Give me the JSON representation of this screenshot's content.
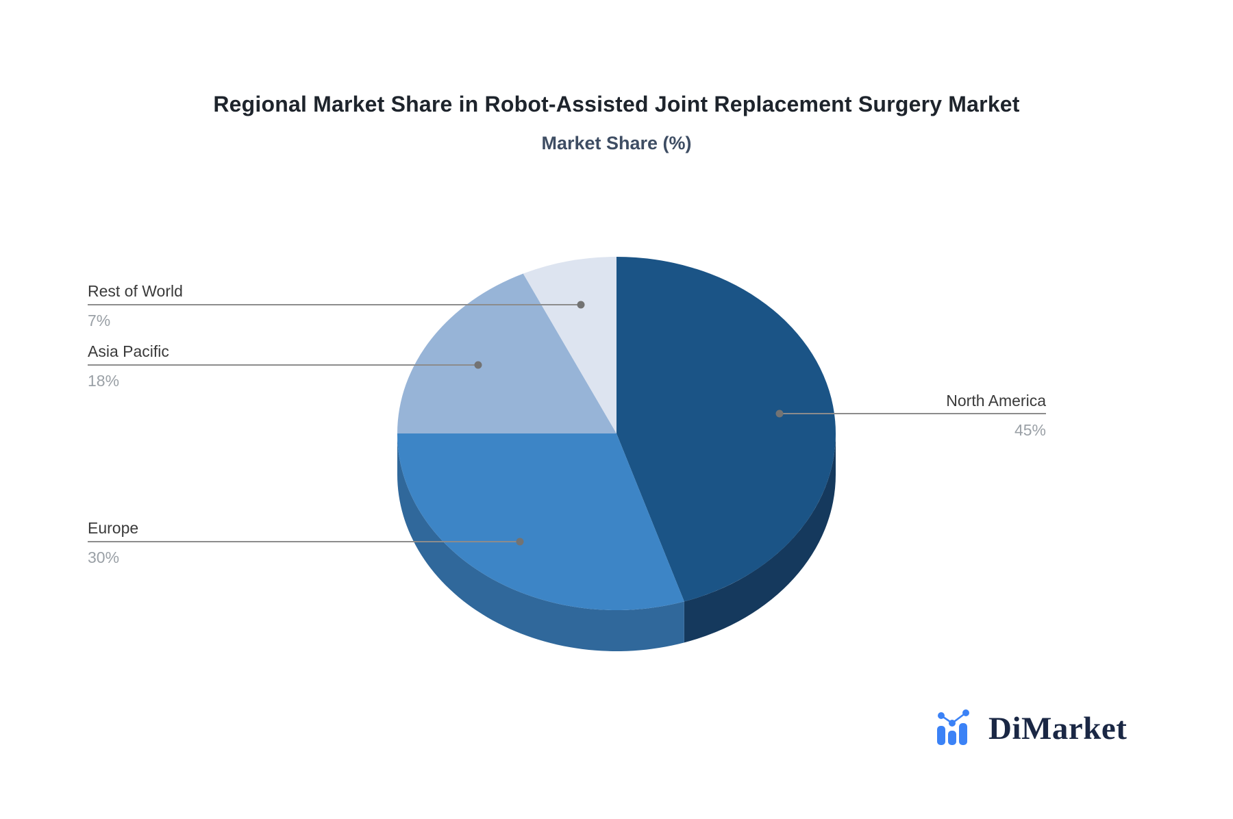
{
  "chart_data": {
    "type": "pie",
    "style": "3d",
    "title": "Regional Market Share in Robot-Assisted Joint Replacement Surgery Market",
    "subtitle": "Market Share (%)",
    "unit": "%",
    "direction": "clockwise",
    "start_angle_deg": 90,
    "legend_position": "callout-labels",
    "slices": [
      {
        "label": "North America",
        "value": 45,
        "pct_text": "45%",
        "color": "#1b5486",
        "side_color": "#15395d"
      },
      {
        "label": "Europe",
        "value": 30,
        "pct_text": "30%",
        "color": "#3d85c6",
        "side_color": "#30689b"
      },
      {
        "label": "Asia Pacific",
        "value": 18,
        "pct_text": "18%",
        "color": "#97b4d7",
        "side_color": "#7e9cc0"
      },
      {
        "label": "Rest of World",
        "value": 7,
        "pct_text": "7%",
        "color": "#dde4f0",
        "side_color": "#b9c4d6"
      }
    ]
  },
  "callout_style": {
    "line_color": "#8c8c8c",
    "dot_color": "#737373",
    "name_color": "#3a3a3a",
    "pct_color": "#9aa0a6"
  },
  "logo": {
    "text": "DiMarket",
    "icon": "bar-line-chart-icon",
    "icon_color": "#3b82f6",
    "text_color": "#1a2744"
  }
}
